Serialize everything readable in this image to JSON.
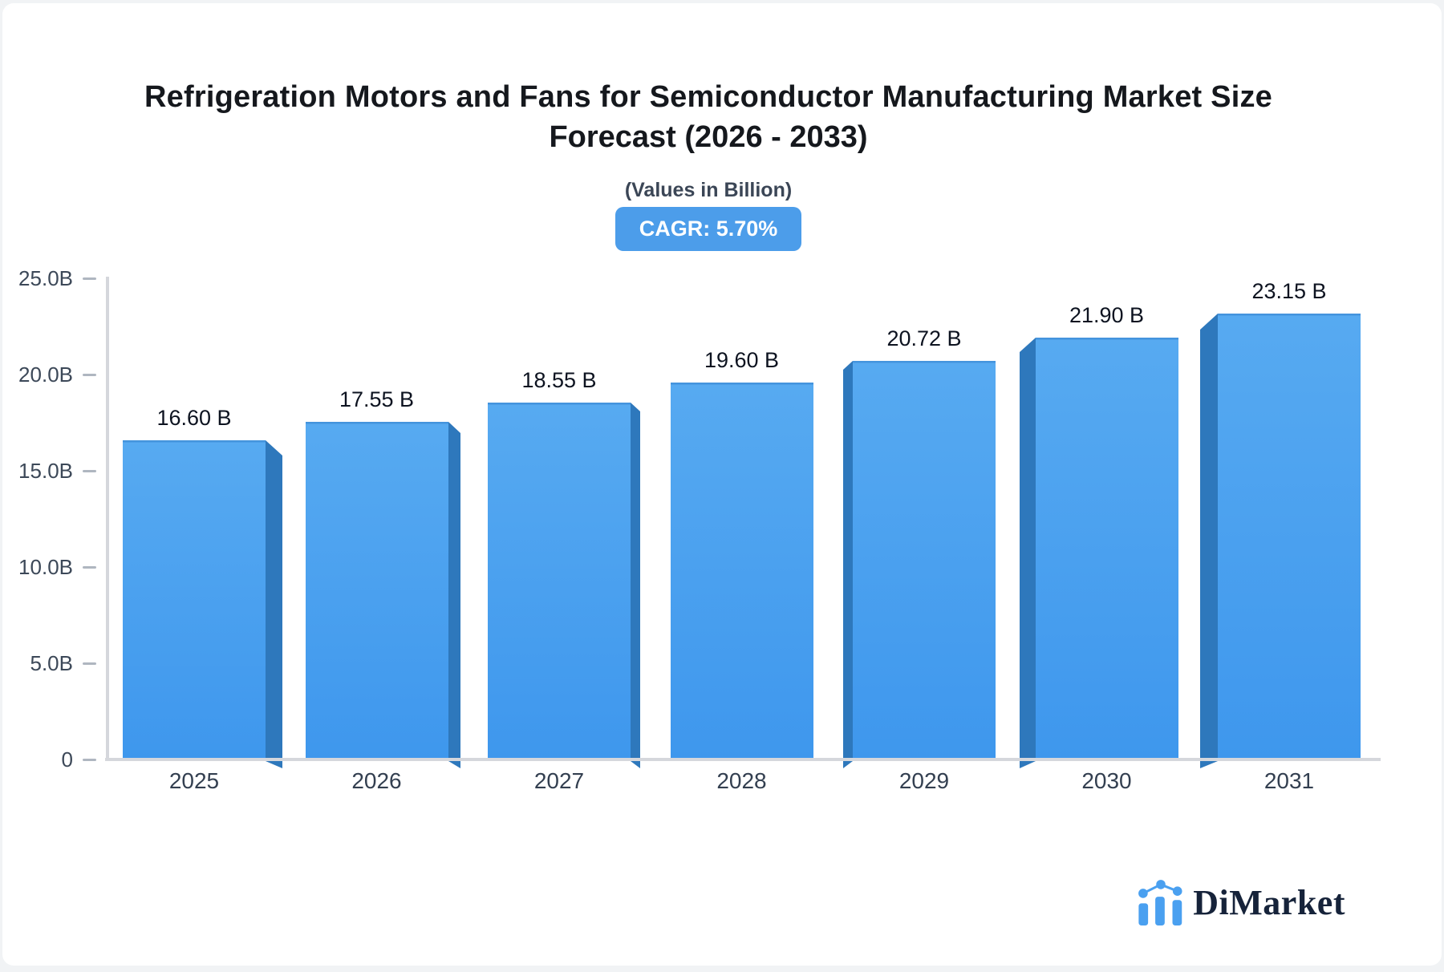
{
  "header": {
    "title_line1": "Refrigeration Motors and Fans for Semiconductor Manufacturing Market Size",
    "title_line2": "Forecast (2026 - 2033)",
    "subtitle": "(Values in Billion)",
    "badge": "CAGR: 5.70%"
  },
  "chart_data": {
    "type": "bar",
    "title": "Refrigeration Motors and Fans for Semiconductor Manufacturing Market Size Forecast (2026 - 2033)",
    "subtitle": "(Values in Billion)",
    "cagr": "5.70%",
    "categories": [
      "2025",
      "2026",
      "2027",
      "2028",
      "2029",
      "2030",
      "2031"
    ],
    "values": [
      16.6,
      17.55,
      18.55,
      19.6,
      20.72,
      21.9,
      23.15
    ],
    "labels": [
      "16.60 B",
      "17.55 B",
      "18.55 B",
      "19.60 B",
      "20.72 B",
      "21.90 B",
      "23.15 B"
    ],
    "ylabel": "",
    "xlabel": "",
    "ylim": [
      0,
      25
    ],
    "yticks": [
      {
        "label": "0",
        "value": 0
      },
      {
        "label": "5.0B",
        "value": 5
      },
      {
        "label": "10.0B",
        "value": 10
      },
      {
        "label": "15.0B",
        "value": 15
      },
      {
        "label": "20.0B",
        "value": 20
      },
      {
        "label": "25.0B",
        "value": 25
      }
    ],
    "grid": false,
    "legend": false,
    "colors": {
      "bar_face_top": "#57aaf1",
      "bar_face_bottom": "#3e97ed",
      "bar_face_edge": "#3e8cd6",
      "bar_side": "#2e78bc",
      "badge_bg": "#4c9dea",
      "axis": "#d5d7dc"
    }
  },
  "footer": {
    "brand": "DiMarket"
  }
}
